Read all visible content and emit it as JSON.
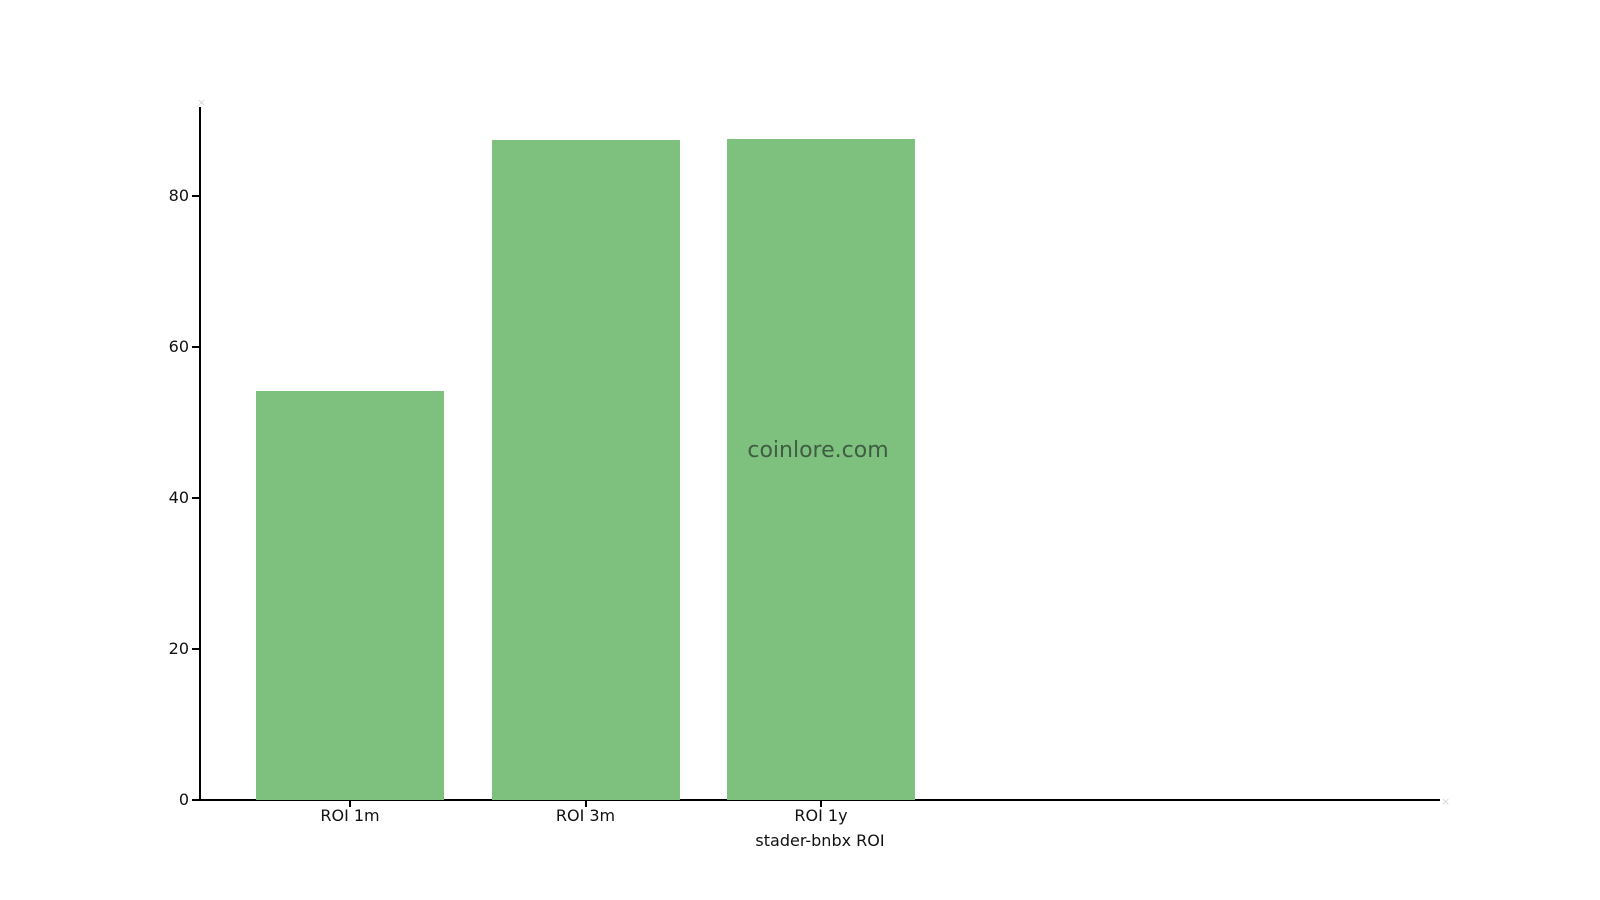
{
  "chart_data": {
    "type": "bar",
    "title": "",
    "categories": [
      "ROI 1m",
      "ROI 3m",
      "ROI 1y"
    ],
    "values": [
      54.2,
      87.4,
      87.6
    ],
    "xlabel": "stader-bnbx ROI",
    "ylabel": "",
    "yticks": [
      0,
      20,
      40,
      60,
      80
    ],
    "ylim": [
      0,
      91.8
    ],
    "grid": false,
    "legend_position": "none",
    "bar_color": "#7ec17e",
    "axis_color": "#000000",
    "tick_label_color": "#111111"
  },
  "watermark": {
    "text": "coinlore.com",
    "color": "#3f5d43"
  }
}
